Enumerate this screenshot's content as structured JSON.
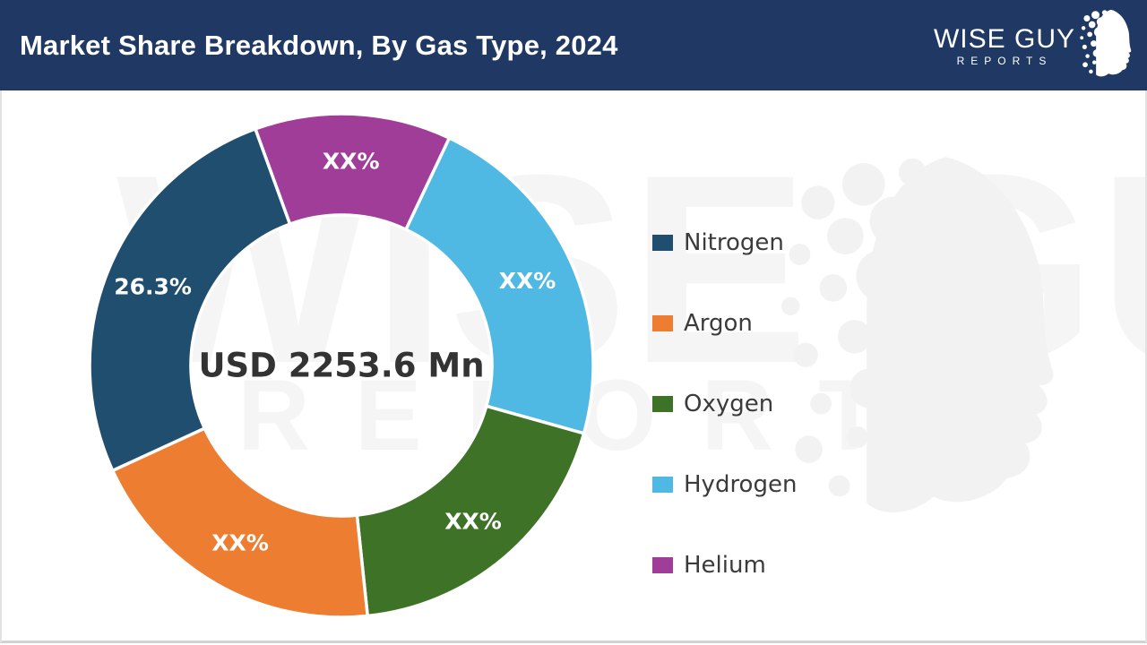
{
  "header": {
    "title": "Market Share Breakdown, By Gas Type, 2024",
    "logo": {
      "line1": "WISE GUY",
      "line2": "REPORTS"
    }
  },
  "watermark": {
    "line1": "WISE GUY",
    "line2": "REPORTS"
  },
  "chart_data": {
    "type": "pie",
    "subtype": "donut",
    "title": "Market Share Breakdown, By Gas Type, 2024",
    "center_label": "USD 2253.6 Mn",
    "start_angle_deg": -20,
    "direction": "clockwise",
    "legend_position": "right",
    "segments": [
      {
        "name": "Nitrogen",
        "label": "26.3%",
        "value": 26.3,
        "color": "#1F4E6E"
      },
      {
        "name": "Argon",
        "label": "XX%",
        "value": 19.8,
        "color": "#ED7D31"
      },
      {
        "name": "Oxygen",
        "label": "XX%",
        "value": 19.0,
        "color": "#3E7327"
      },
      {
        "name": "Hydrogen",
        "label": "XX%",
        "value": 22.3,
        "color": "#50B9E3"
      },
      {
        "name": "Helium",
        "label": "XX%",
        "value": 12.6,
        "color": "#9F3D98"
      }
    ]
  },
  "colors": {
    "header_bg": "#203864",
    "body_bg": "#FFFFFF",
    "watermark": "#F4F4F6",
    "divider": "#D2D2D2",
    "center_text": "#333333",
    "legend_text": "#3B3B3B",
    "segment_label_text": "#FFFFFF"
  }
}
